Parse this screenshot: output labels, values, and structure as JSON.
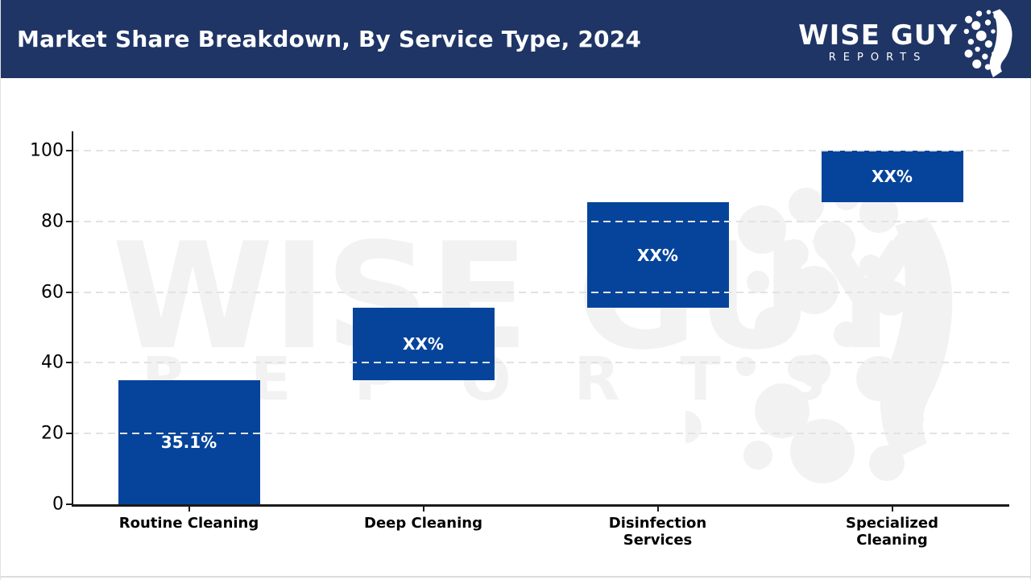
{
  "header": {
    "title": "Market Share Breakdown, By Service Type, 2024",
    "logo": {
      "line1": "WISE GUY",
      "line2": "REPORTS"
    }
  },
  "watermark": {
    "line1": "WISE GUY",
    "line2": "REPORTS"
  },
  "colors": {
    "header_bg": "#1f3566",
    "bar_blue": "#06449b",
    "gridline": "#e3e3e3",
    "axis": "#1a1a1a",
    "bar_label_text": "#ffffff",
    "watermark": "#f2f2f2"
  },
  "chart_data": {
    "type": "bar",
    "subtype": "waterfall",
    "title": "Market Share Breakdown, By Service Type, 2024",
    "xlabel": "",
    "ylabel": "",
    "ylim": [
      0,
      105
    ],
    "yticks": [
      0,
      20,
      40,
      60,
      80,
      100
    ],
    "grid": "horizontal dashed, drawn over bars",
    "legend": "none",
    "categories": [
      "Routine Cleaning",
      "Deep Cleaning",
      "Disinfection\nServices",
      "Specialized\nCleaning"
    ],
    "segments": [
      {
        "category": "Routine Cleaning",
        "start": 0,
        "end": 35.1,
        "label": "35.1%"
      },
      {
        "category": "Deep Cleaning",
        "start": 35.1,
        "end": 55.5,
        "label": "XX%"
      },
      {
        "category": "Disinfection Services",
        "start": 55.5,
        "end": 85.4,
        "label": "XX%"
      },
      {
        "category": "Specialized Cleaning",
        "start": 85.4,
        "end": 100,
        "label": "XX%"
      }
    ]
  }
}
